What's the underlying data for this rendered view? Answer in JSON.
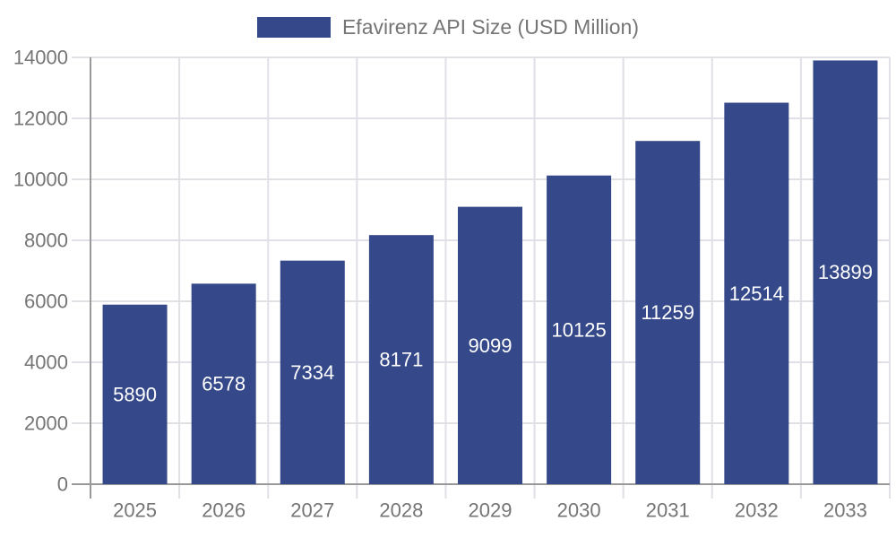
{
  "legend": {
    "series_label": "Efavirenz API Size (USD Million)"
  },
  "colors": {
    "bar": "#35498A",
    "axis_line": "#999999",
    "gridline": "#e0e0e6",
    "tick_label": "#757575",
    "value_label": "#ffffff",
    "background": "#ffffff"
  },
  "chart_data": {
    "type": "bar",
    "title": "Efavirenz API Size (USD Million)",
    "categories": [
      "2025",
      "2026",
      "2027",
      "2028",
      "2029",
      "2030",
      "2031",
      "2032",
      "2033"
    ],
    "series": [
      {
        "name": "Efavirenz API Size (USD Million)",
        "values": [
          5890,
          6578,
          7334,
          8171,
          9099,
          10125,
          11259,
          12514,
          13899
        ]
      }
    ],
    "xlabel": "",
    "ylabel": "",
    "ylim": [
      0,
      14000
    ],
    "ytick_interval": 2000,
    "ytick_labels": [
      "0",
      "2000",
      "4000",
      "6000",
      "8000",
      "10000",
      "12000",
      "14000"
    ],
    "grid": true,
    "legend_position": "top-center",
    "value_label_position": "inside-center"
  }
}
